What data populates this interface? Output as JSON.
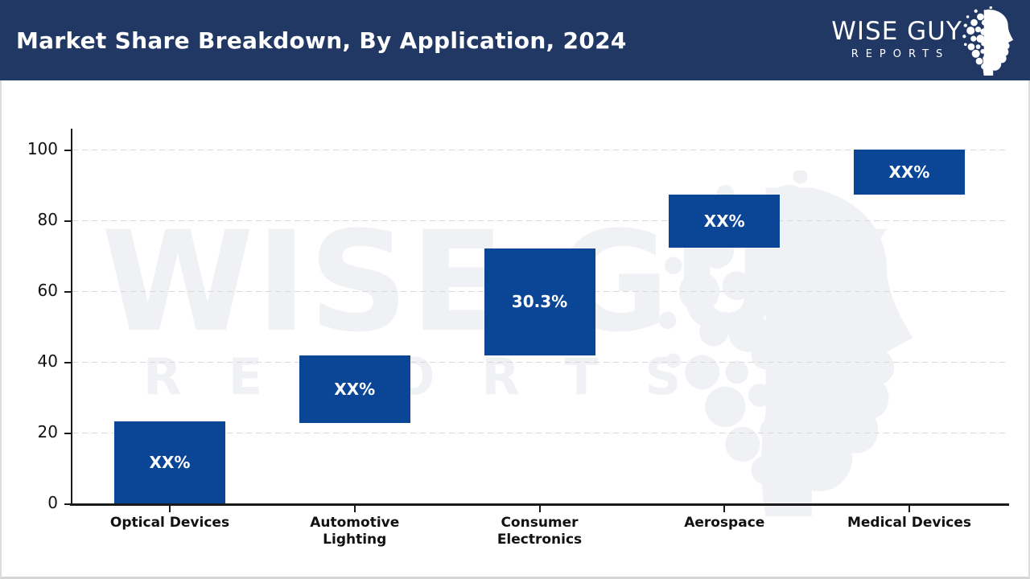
{
  "header": {
    "title": "Market Share Breakdown, By Application, 2024",
    "bg_color": "#213864",
    "logo": {
      "title": "WISE GUY",
      "subtitle": "REPORTS"
    }
  },
  "watermark": {
    "line1": "WISE GUY",
    "line2": "REPORTS"
  },
  "chart_data": {
    "type": "bar",
    "variant": "floating-waterfall",
    "title": "Market Share Breakdown, By Application, 2024",
    "categories": [
      "Optical Devices",
      "Automotive Lighting",
      "Consumer Electronics",
      "Aerospace",
      "Medical Devices"
    ],
    "bars": [
      {
        "category": "Optical Devices",
        "start": 0,
        "end": 23.2,
        "label": "XX%"
      },
      {
        "category": "Automotive Lighting",
        "start": 22.7,
        "end": 41.9,
        "label": "XX%"
      },
      {
        "category": "Consumer Electronics",
        "start": 41.8,
        "end": 72.1,
        "label": "30.3%"
      },
      {
        "category": "Aerospace",
        "start": 72.2,
        "end": 87.3,
        "label": "XX%"
      },
      {
        "category": "Medical Devices",
        "start": 87.3,
        "end": 100,
        "label": "XX%"
      }
    ],
    "yticks": [
      0,
      20,
      40,
      60,
      80,
      100
    ],
    "ylim": [
      0,
      105
    ],
    "xlabel": "",
    "ylabel": "",
    "grid": "horizontal-dashed",
    "legend": "none",
    "bar_color": "#0b4596",
    "bar_label_color": "#ffffff",
    "axis_color": "#1a1a1a",
    "grid_color": "#d9d9d9",
    "tick_label_color": "#111111"
  }
}
